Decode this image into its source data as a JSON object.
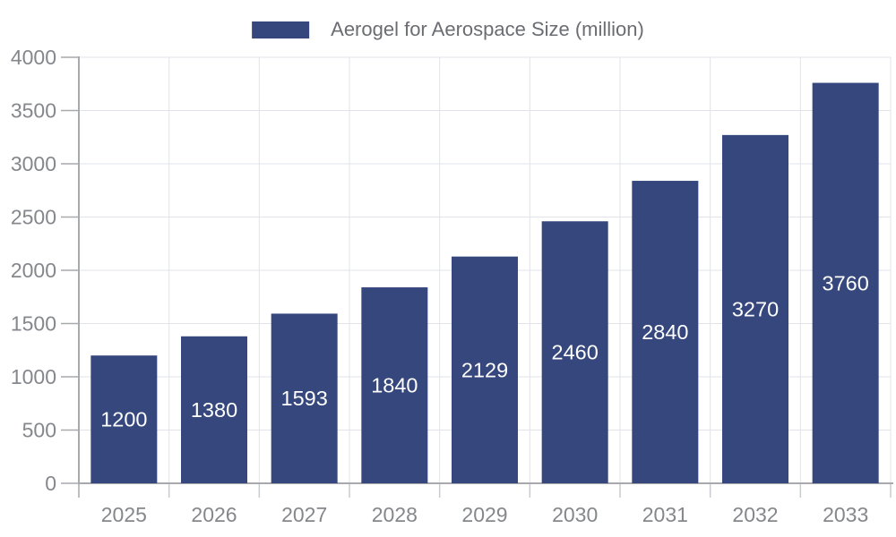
{
  "legend": {
    "label": "Aerogel for Aerospace Size (million)"
  },
  "chart_data": {
    "type": "bar",
    "title": "Aerogel for Aerospace Size (million)",
    "series_name": "Aerogel for Aerospace Size (million)",
    "categories": [
      "2025",
      "2026",
      "2027",
      "2028",
      "2029",
      "2030",
      "2031",
      "2032",
      "2033"
    ],
    "values": [
      1200,
      1380,
      1593,
      1840,
      2129,
      2460,
      2840,
      3270,
      3760
    ],
    "xlabel": "",
    "ylabel": "",
    "ylim": [
      0,
      4000
    ],
    "ytick_step": 500,
    "ytick_labels": [
      "0",
      "500",
      "1000",
      "1500",
      "2000",
      "2500",
      "3000",
      "3500",
      "4000"
    ],
    "grid": true,
    "legend_position": "top-center",
    "value_label_position": "inside-center"
  },
  "colors": {
    "bar": "#35477d",
    "grid_line": "#e1e3e8",
    "axis_line": "#a7a9ad",
    "x_tick_line": "#c9cbd0",
    "axis_label": "#85878c",
    "legend_text": "#6b6d73",
    "value_label": "#ffffff",
    "background": "#ffffff"
  }
}
